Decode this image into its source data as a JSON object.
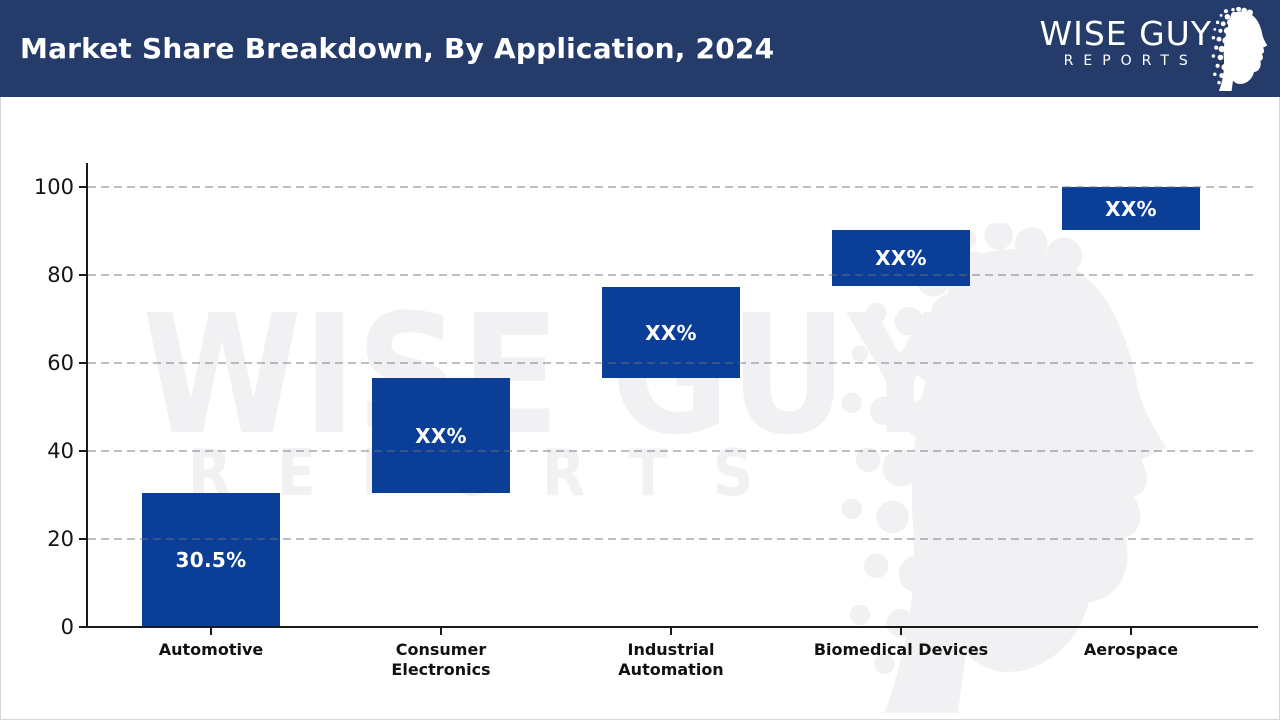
{
  "header": {
    "title": "Market Share Breakdown, By Application, 2024",
    "logo": {
      "wordmark": "WISE GUY",
      "subtext": "REPORTS"
    }
  },
  "watermark": {
    "wordmark": "WISE GUY",
    "subtext": "REPORTS"
  },
  "colors": {
    "header_bg": "#253C6B",
    "bar": "#0B3E96",
    "bar_label": "#FFFFFF",
    "grid": "rgba(110,113,118,0.45)",
    "axis": "#1A1A1A",
    "watermark": "#F1F1F4",
    "tick_text": "#141414"
  },
  "chart_data": {
    "type": "bar",
    "variant": "waterfall-floating-bars",
    "title": "Market Share Breakdown, By Application, 2024",
    "xlabel": "",
    "ylabel": "",
    "legend": "none",
    "grid": "horizontal-dashed",
    "ylim": [
      0,
      105
    ],
    "y_ticks": [
      0,
      20,
      40,
      60,
      80,
      100
    ],
    "categories": [
      "Automotive",
      "Consumer Electronics",
      "Industrial Automation",
      "Biomedical Devices",
      "Aerospace"
    ],
    "category_label_lines": [
      [
        "Automotive"
      ],
      [
        "Consumer",
        "Electronics"
      ],
      [
        "Industrial",
        "Automation"
      ],
      [
        "Biomedical Devices"
      ],
      [
        "Aerospace"
      ]
    ],
    "segments": [
      {
        "category": "Automotive",
        "start": 0,
        "end": 30.5,
        "label": "30.5%"
      },
      {
        "category": "Consumer Electronics",
        "start": 30.5,
        "end": 56.5,
        "label": "XX%"
      },
      {
        "category": "Industrial Automation",
        "start": 56.5,
        "end": 77.3,
        "label": "XX%"
      },
      {
        "category": "Biomedical Devices",
        "start": 77.4,
        "end": 90.2,
        "label": "XX%"
      },
      {
        "category": "Aerospace",
        "start": 90.2,
        "end": 99.9,
        "label": "XX%"
      }
    ]
  }
}
